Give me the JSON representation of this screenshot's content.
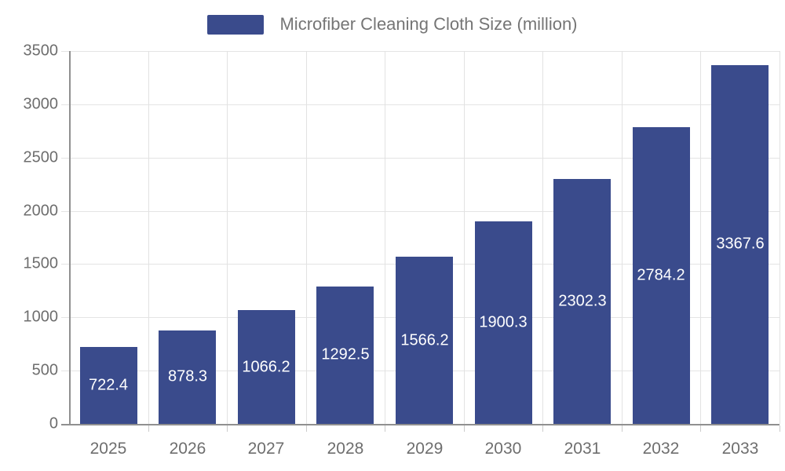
{
  "legend": {
    "label": "Microfiber Cleaning Cloth Size (million)"
  },
  "chart_data": {
    "type": "bar",
    "title": "Microfiber Cleaning Cloth Size (million)",
    "categories": [
      "2025",
      "2026",
      "2027",
      "2028",
      "2029",
      "2030",
      "2031",
      "2032",
      "2033"
    ],
    "values": [
      722.4,
      878.3,
      1066.2,
      1292.5,
      1566.2,
      1900.3,
      2302.3,
      2784.2,
      3367.6
    ],
    "xlabel": "",
    "ylabel": "",
    "ylim": [
      0,
      3500
    ],
    "yticks": [
      0,
      500,
      1000,
      1500,
      2000,
      2500,
      3000,
      3500
    ],
    "grid": true,
    "legend_position": "top-center",
    "value_labels": "inside-center"
  },
  "colors": {
    "bar": "#3A4B8C",
    "value_label": "#ffffff",
    "axis_text": "#6e6e6e",
    "legend_text": "#757575",
    "axis_line": "#909090",
    "gridline": "#e4e4e4"
  }
}
